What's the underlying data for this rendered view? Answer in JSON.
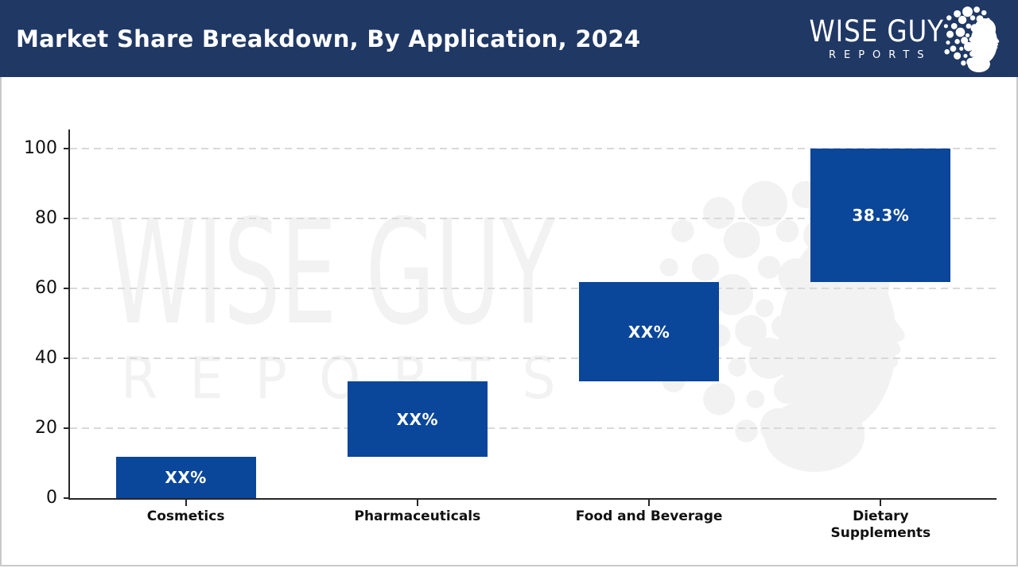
{
  "header": {
    "title": "Market Share Breakdown, By Application, 2024",
    "logo": {
      "line1": "WISE GUY",
      "line2": "REPORTS"
    }
  },
  "watermark": {
    "line1": "WISE GUY",
    "line2": "REPORTS"
  },
  "colors": {
    "header_bg": "#203864",
    "bar": "#0a4699",
    "bar_label_text": "#ffffff",
    "axis": "#262626",
    "gridline": "#d9d9d9",
    "tick_label": "#111111",
    "watermark": "#f2f2f2",
    "page_border": "#c9c9c9",
    "title_text": "#ffffff"
  },
  "chart_data": {
    "type": "bar",
    "subtype": "floating-segment-waterfall",
    "title": "Market Share Breakdown, By Application, 2024",
    "categories": [
      "Cosmetics",
      "Pharmaceuticals",
      "Food and Beverage",
      "Dietary\nSupplements"
    ],
    "values": [
      11.8,
      21.5,
      28.4,
      38.3
    ],
    "segments": [
      {
        "from": 0,
        "to": 11.8
      },
      {
        "from": 11.8,
        "to": 33.3
      },
      {
        "from": 33.3,
        "to": 61.7
      },
      {
        "from": 61.7,
        "to": 100
      }
    ],
    "bar_labels": [
      "XX%",
      "XX%",
      "XX%",
      "38.3%"
    ],
    "yticks": [
      0,
      20,
      40,
      60,
      80,
      100
    ],
    "ylim": [
      0,
      100
    ],
    "xlabel": "",
    "ylabel": "",
    "grid": "horizontal-dashed",
    "legend": "none"
  }
}
